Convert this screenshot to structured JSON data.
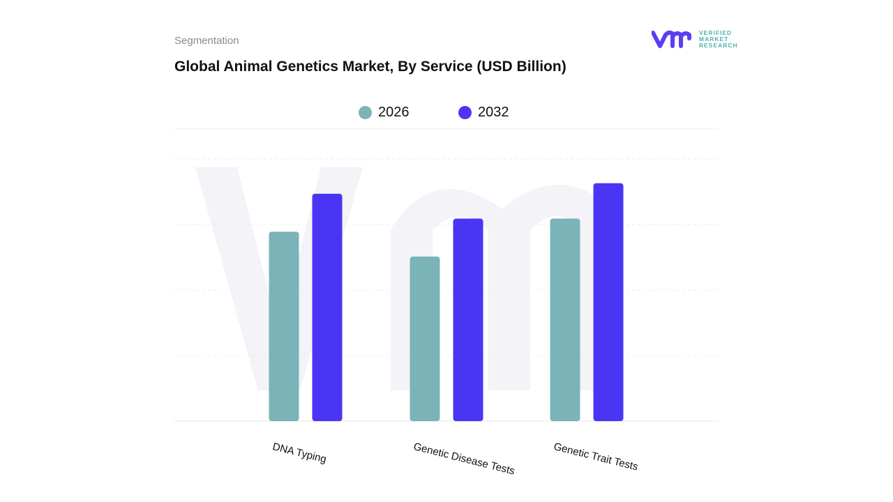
{
  "header": {
    "segment_label": "Segmentation",
    "title": "Global Animal Genetics Market, By Service (USD Billion)"
  },
  "logo": {
    "text_lines": [
      "VERIFIED",
      "MARKET",
      "RESEARCH"
    ],
    "color": "#5b3df5",
    "text_color": "#4fb3b0"
  },
  "chart_data": {
    "type": "bar",
    "title": "Global Animal Genetics Market, By Service (USD Billion)",
    "categories": [
      "DNA Typing",
      "Genetic Disease Tests",
      "Genetic Trait Tests"
    ],
    "series": [
      {
        "name": "2026",
        "color": "#7ab4b8",
        "values": [
          2.89,
          2.51,
          3.09
        ]
      },
      {
        "name": "2032",
        "color": "#4a35f5",
        "values": [
          3.47,
          3.09,
          3.63
        ]
      }
    ],
    "ylim": [
      0,
      4
    ],
    "grid": true,
    "legend": "top-center",
    "xlabel": "",
    "ylabel": ""
  }
}
